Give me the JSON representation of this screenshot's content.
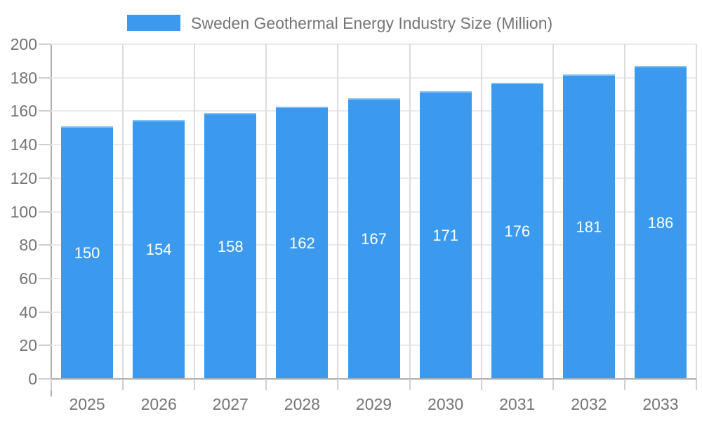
{
  "legend": {
    "label": "Sweden Geothermal Energy Industry Size (Million)"
  },
  "chart_data": {
    "type": "bar",
    "title": "Sweden Geothermal Energy Industry Size (Million)",
    "categories": [
      "2025",
      "2026",
      "2027",
      "2028",
      "2029",
      "2030",
      "2031",
      "2032",
      "2033"
    ],
    "values": [
      150,
      154,
      158,
      162,
      167,
      171,
      176,
      181,
      186
    ],
    "xlabel": "",
    "ylabel": "",
    "ylim": [
      0,
      200
    ],
    "ytick_step": 20,
    "ytick_labels": [
      "0",
      "20",
      "40",
      "60",
      "80",
      "100",
      "120",
      "140",
      "160",
      "180",
      "200"
    ],
    "grid": true,
    "legend_position": "top",
    "colors": {
      "bar": "#3B9AEE",
      "bar_top_edge": "#85C2F4",
      "value_label": "#FFFFFF",
      "axis_text": "#757575",
      "grid_h": "#EAEAEA",
      "grid_v": "#DCDCDC",
      "axis_line": "#AFAFAF",
      "tick_mark": "#CFCFCF"
    }
  }
}
